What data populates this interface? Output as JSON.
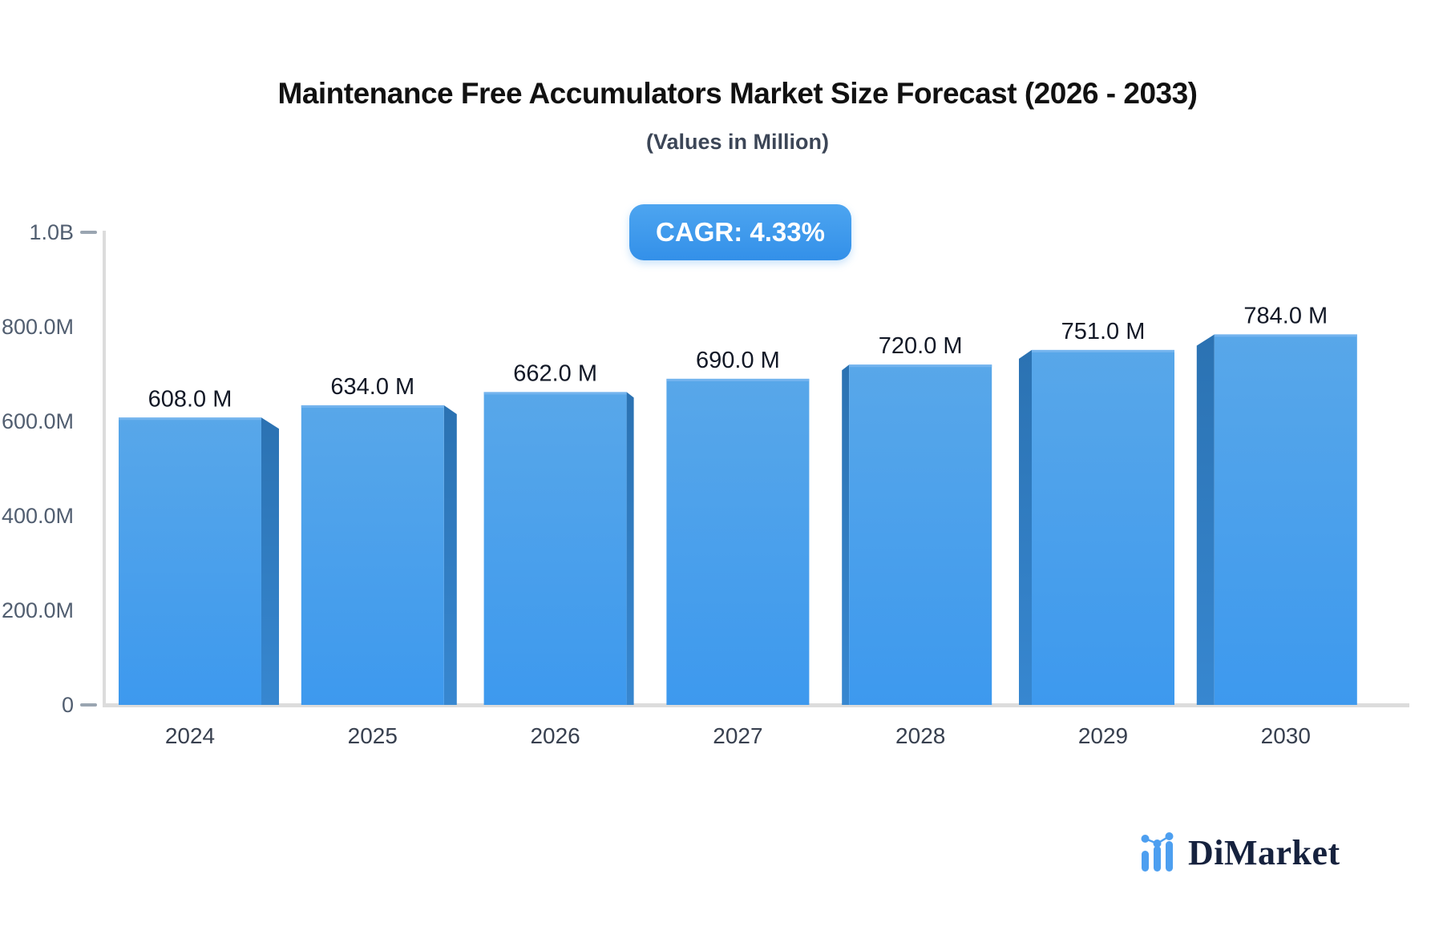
{
  "chart": {
    "title": "Maintenance Free Accumulators Market Size Forecast (2026 - 2033)",
    "subtitle": "(Values in Million)",
    "cagr_label": "CAGR: 4.33%"
  },
  "brand": {
    "name": "DiMarket"
  },
  "chart_data": {
    "type": "bar",
    "title": "Maintenance Free Accumulators Market Size Forecast (2026 - 2033)",
    "subtitle": "(Values in Million)",
    "annotation": "CAGR: 4.33%",
    "categories": [
      "2024",
      "2025",
      "2026",
      "2027",
      "2028",
      "2029",
      "2030"
    ],
    "values": [
      608,
      634,
      662,
      690,
      720,
      751,
      784
    ],
    "value_labels": [
      "608.0 M",
      "634.0 M",
      "662.0 M",
      "690.0 M",
      "720.0 M",
      "751.0 M",
      "784.0 M"
    ],
    "unit": "Million",
    "xlabel": "",
    "ylabel": "",
    "ylim": [
      0,
      1000
    ],
    "grid": false,
    "legend": "none",
    "yticks": [
      {
        "label": "0",
        "value": 0
      },
      {
        "label": "200.0M",
        "value": 200
      },
      {
        "label": "400.0M",
        "value": 400
      },
      {
        "label": "600.0M",
        "value": 600
      },
      {
        "label": "800.0M",
        "value": 800
      },
      {
        "label": "1.0B",
        "value": 1000
      }
    ],
    "colors": {
      "bar_face_top": "#58a7e9",
      "bar_face_bottom": "#3d99ee",
      "bar_side_top": "#2b72b2",
      "bar_side_bottom": "#3787d0",
      "axis": "#dcdcdc",
      "tick_dash": "#9aa5b1",
      "y_label": "#515e70",
      "x_label": "#38404f",
      "value_label": "#121826"
    }
  }
}
